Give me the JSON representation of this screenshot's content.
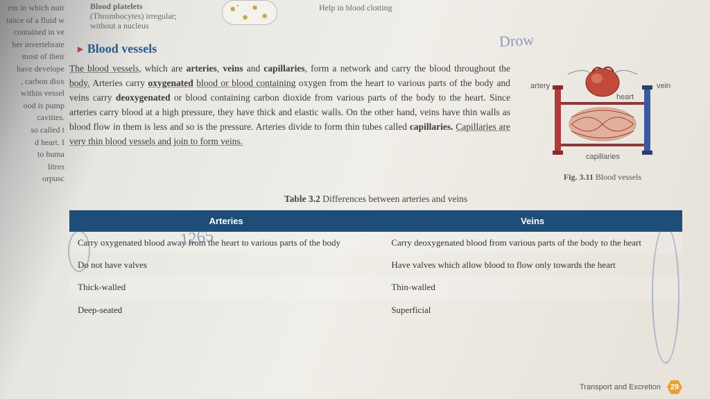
{
  "left_edge": [
    "em in which nutr",
    "tance of a fluid w",
    "contained in ve",
    "her invertebrate",
    "most of their",
    "have develope",
    ", carbon diox",
    "",
    "within vessel",
    "ood is pump",
    "cavities.",
    "",
    "",
    "so called t",
    "d heart. I",
    "to huma",
    "",
    "",
    "litres",
    "orpusc"
  ],
  "top": {
    "platelets_title": "Blood platelets",
    "thrombo": "(Thrombocytes) irregular;",
    "nucleus": "without a nucleus",
    "help": "Help in blood clotting"
  },
  "heading": "Blood vessels",
  "paragraph_html": "<span class='u'>The blood vessels,</span> which are <b>arteries</b>, <b>veins</b> and <b>capillaries</b>, form a network and carry the blood throughout the <span class='u'>body.</span> Arteries carry <b><span class='u'>oxygenated</span></b> <span class='u'>blood or blood containing</span> oxygen from the heart to various parts of the body and veins carry <b>deoxygenated</b> or blood containing carbon dioxide from various parts of the body to the heart. Since arteries carry blood at a high pressure, they have thick and elastic walls. On the other hand, veins have thin walls as blood flow in them is less and so is the pressure. Arteries divide to form thin tubes called <b>capillaries.</b> <span class='u'>Capillaries are very thin blood vessels and join to form veins.</span>",
  "figure": {
    "caption_prefix": "Fig. 3.11 ",
    "caption": "Blood vessels",
    "labels": {
      "artery": "artery",
      "vein": "vein",
      "heart": "heart",
      "capillaries": "capillaries"
    },
    "colors": {
      "artery": "#b33a3a",
      "vein": "#3a5aa0",
      "heart": "#c24a3a",
      "cap_fill": "#d97a5a",
      "cap_stroke": "#a04030"
    }
  },
  "table": {
    "title_prefix": "Table 3.2 ",
    "title": "Differences between arteries and veins",
    "headers": [
      "Arteries",
      "Veins"
    ],
    "rows": [
      [
        "Carry oxygenated blood away from the heart to various parts of the body",
        "Carry deoxygenated blood from various parts of the body to the heart"
      ],
      [
        "Do not have valves",
        "Have valves which allow blood to flow only towards the heart"
      ],
      [
        "Thick-walled",
        "Thin-walled"
      ],
      [
        "Deep-seated",
        "Superficial"
      ]
    ],
    "header_bg": "#1e4e78"
  },
  "footer": {
    "chapter": "Transport and Excretion",
    "page": "29"
  },
  "handwriting": {
    "drow": "Drow",
    "num": "1265"
  }
}
